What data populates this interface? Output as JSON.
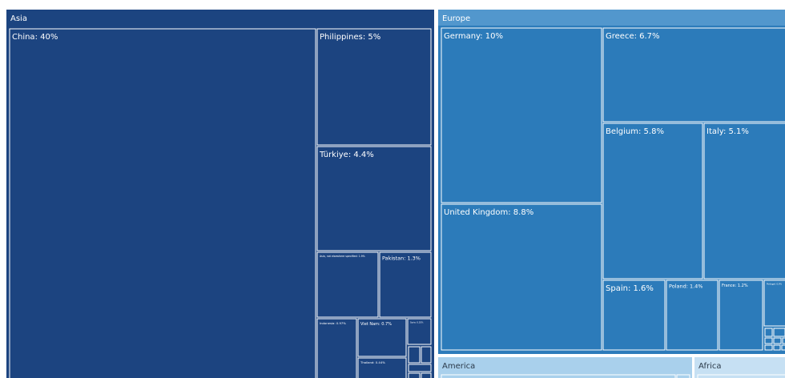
{
  "chart_data": {
    "type": "treemap",
    "colors": {
      "asia": "#1c4480",
      "europe_header": "#5297cd",
      "europe": "#2c7bba",
      "america": "#a9d0ec",
      "africa": "#c6e0f3",
      "border": "#ffffff"
    },
    "groups": [
      {
        "name": "Asia",
        "items": [
          {
            "label": "China: 40%",
            "value": 40
          },
          {
            "label": "Philippines: 5%",
            "value": 5
          },
          {
            "label": "Türkiye: 4.4%",
            "value": 4.4
          },
          {
            "label": "Asia, not elsewhere specified: 1.9%",
            "value": 1.9
          },
          {
            "label": "Pakistan: 1.3%",
            "value": 1.3
          },
          {
            "label": "Indonesia: 0.97%",
            "value": 0.97
          },
          {
            "label": "Viet Nam: 0.7%",
            "value": 0.7
          },
          {
            "label": "Syria: 0.35%",
            "value": 0.35
          },
          {
            "label": "Thailand: 0.44%",
            "value": 0.44
          }
        ]
      },
      {
        "name": "Europe",
        "items": [
          {
            "label": "Germany: 10%",
            "value": 10
          },
          {
            "label": "United Kingdom: 8.8%",
            "value": 8.8
          },
          {
            "label": "Greece: 6.7%",
            "value": 6.7
          },
          {
            "label": "Belgium: 5.8%",
            "value": 5.8
          },
          {
            "label": "Italy: 5.1%",
            "value": 5.1
          },
          {
            "label": "Spain: 1.6%",
            "value": 1.6
          },
          {
            "label": "Poland: 1.4%",
            "value": 1.4
          },
          {
            "label": "France: 1.2%",
            "value": 1.2
          },
          {
            "label": "Portugal: 0.9%",
            "value": 0.9
          }
        ]
      },
      {
        "name": "America",
        "items": []
      },
      {
        "name": "Africa",
        "items": []
      }
    ]
  }
}
